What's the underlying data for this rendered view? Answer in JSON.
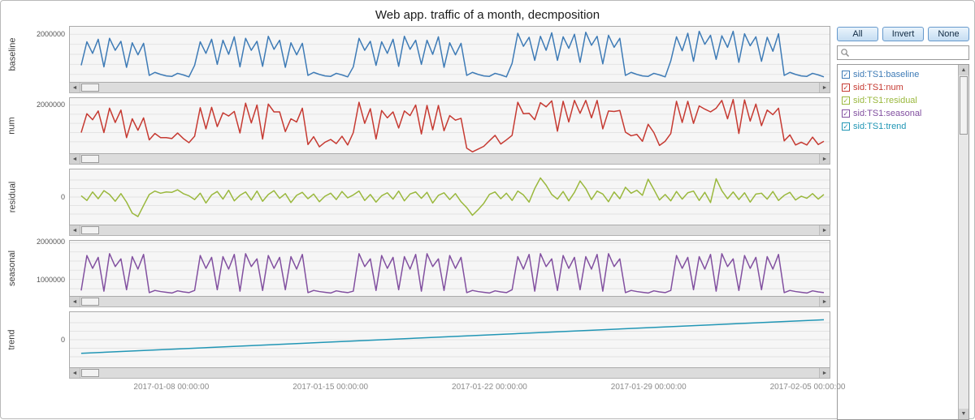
{
  "title": "Web app. traffic of a month, decmposition",
  "panel": {
    "buttons": [
      "All",
      "Invert",
      "None"
    ],
    "search": {
      "value": "",
      "placeholder": ""
    },
    "series": [
      {
        "label": "sid:TS1:baseline",
        "color": "#3e7bb6",
        "checked": true
      },
      {
        "label": "sid:TS1:num",
        "color": "#c63a32",
        "checked": true
      },
      {
        "label": "sid:TS1:residual",
        "color": "#9ab83d",
        "checked": true
      },
      {
        "label": "sid:TS1:seasonal",
        "color": "#8250a0",
        "checked": true
      },
      {
        "label": "sid:TS1:trend",
        "color": "#2196b5",
        "checked": true
      }
    ]
  },
  "chart_data": {
    "type": "line",
    "title": "Web app. traffic of a month, decmposition",
    "xlabel": "",
    "x_domain": [
      0,
      33.5
    ],
    "x_unit": "days from 2017-01-03 12:00:00",
    "xticks": [
      {
        "x": 4.5,
        "label": "2017-01-08 00:00:00"
      },
      {
        "x": 11.5,
        "label": "2017-01-15 00:00:00"
      },
      {
        "x": 18.5,
        "label": "2017-01-22 00:00:00"
      },
      {
        "x": 25.5,
        "label": "2017-01-29 00:00:00"
      },
      {
        "x": 32.5,
        "label": "2017-02-05 00:00:00"
      }
    ],
    "charts": [
      {
        "name": "baseline",
        "color": "#3e7bb6",
        "ylim": [
          1050000,
          2150000
        ],
        "yticks": [
          {
            "v": 2000000,
            "label": "2000000"
          }
        ],
        "gridlines": [
          1200000,
          1400000,
          1600000,
          1800000,
          2000000
        ],
        "x_start": 0.5,
        "samples_per_day": 4,
        "values": [
          1380000,
          1850000,
          1620000,
          1900000,
          1350000,
          1920000,
          1680000,
          1860000,
          1340000,
          1830000,
          1590000,
          1820000,
          1180000,
          1240000,
          1200000,
          1170000,
          1160000,
          1220000,
          1190000,
          1150000,
          1380000,
          1850000,
          1620000,
          1900000,
          1400000,
          1880000,
          1600000,
          1950000,
          1350000,
          1920000,
          1680000,
          1860000,
          1360000,
          1960000,
          1700000,
          1880000,
          1340000,
          1830000,
          1590000,
          1820000,
          1180000,
          1240000,
          1200000,
          1170000,
          1160000,
          1220000,
          1190000,
          1150000,
          1350000,
          1920000,
          1680000,
          1860000,
          1380000,
          1850000,
          1620000,
          1900000,
          1360000,
          1960000,
          1700000,
          1880000,
          1400000,
          1880000,
          1600000,
          1950000,
          1340000,
          1830000,
          1590000,
          1820000,
          1180000,
          1240000,
          1200000,
          1170000,
          1160000,
          1220000,
          1190000,
          1150000,
          1420000,
          2020000,
          1760000,
          1940000,
          1480000,
          1960000,
          1680000,
          2030000,
          1480000,
          1950000,
          1720000,
          2000000,
          1440000,
          2040000,
          1780000,
          1960000,
          1410000,
          1980000,
          1740000,
          1920000,
          1180000,
          1240000,
          1200000,
          1170000,
          1160000,
          1220000,
          1190000,
          1150000,
          1470000,
          1950000,
          1670000,
          2020000,
          1460000,
          2060000,
          1800000,
          1980000,
          1500000,
          1970000,
          1740000,
          2060000,
          1440000,
          2010000,
          1770000,
          1950000,
          1460000,
          1940000,
          1660000,
          2010000,
          1180000,
          1240000,
          1200000,
          1170000,
          1160000,
          1220000,
          1190000,
          1150000
        ]
      },
      {
        "name": "num",
        "color": "#c63a32",
        "ylim": [
          950000,
          2150000
        ],
        "yticks": [
          {
            "v": 2000000,
            "label": "2000000"
          }
        ],
        "gridlines": [
          1200000,
          1400000,
          1600000,
          1800000,
          2000000
        ],
        "x_start": 0.5,
        "samples_per_day": 4,
        "values": [
          1400000,
          1810000,
          1680000,
          1870000,
          1400000,
          1930000,
          1620000,
          1890000,
          1290000,
          1700000,
          1450000,
          1720000,
          1240000,
          1380000,
          1290000,
          1290000,
          1270000,
          1390000,
          1270000,
          1180000,
          1320000,
          1940000,
          1480000,
          1950000,
          1530000,
          1830000,
          1760000,
          1860000,
          1390000,
          2040000,
          1610000,
          2000000,
          1260000,
          2020000,
          1850000,
          1850000,
          1420000,
          1700000,
          1630000,
          1930000,
          1140000,
          1310000,
          1090000,
          1190000,
          1250000,
          1160000,
          1320000,
          1130000,
          1400000,
          2060000,
          1600000,
          1920000,
          1260000,
          1880000,
          1720000,
          1850000,
          1500000,
          1870000,
          1770000,
          2000000,
          1370000,
          1990000,
          1460000,
          1990000,
          1440000,
          1770000,
          1670000,
          1710000,
          1060000,
          980000,
          1040000,
          1100000,
          1220000,
          1340000,
          1150000,
          1240000,
          1340000,
          2060000,
          1810000,
          1820000,
          1680000,
          2050000,
          1960000,
          2090000,
          1430000,
          2080000,
          1630000,
          2100000,
          1820000,
          2100000,
          1720000,
          2100000,
          1480000,
          1870000,
          1860000,
          1880000,
          1410000,
          1330000,
          1360000,
          1210000,
          1580000,
          1400000,
          1120000,
          1210000,
          1380000,
          2080000,
          1620000,
          2080000,
          1600000,
          1980000,
          1910000,
          1850000,
          1930000,
          2100000,
          1700000,
          2120000,
          1380000,
          2110000,
          1650000,
          2020000,
          1550000,
          1890000,
          1790000,
          1930000,
          1220000,
          1350000,
          1130000,
          1190000,
          1130000,
          1300000,
          1140000,
          1210000
        ]
      },
      {
        "name": "residual",
        "color": "#9ab83d",
        "ylim": [
          -650000,
          650000
        ],
        "yticks": [
          {
            "v": 0,
            "label": "0"
          }
        ],
        "gridlines": [
          -400000,
          -200000,
          0,
          200000,
          400000
        ],
        "x_start": 0.5,
        "samples_per_day": 4,
        "values": [
          30000,
          -80000,
          120000,
          -40000,
          150000,
          60000,
          -100000,
          80000,
          -120000,
          -380000,
          -460000,
          -200000,
          60000,
          140000,
          90000,
          120000,
          110000,
          170000,
          80000,
          30000,
          -60000,
          90000,
          -140000,
          50000,
          130000,
          -50000,
          160000,
          -90000,
          40000,
          120000,
          -70000,
          140000,
          -100000,
          60000,
          150000,
          -30000,
          80000,
          -130000,
          40000,
          110000,
          -40000,
          70000,
          -110000,
          20000,
          90000,
          -60000,
          130000,
          -20000,
          50000,
          140000,
          -80000,
          60000,
          -120000,
          30000,
          100000,
          -50000,
          140000,
          -90000,
          70000,
          120000,
          -30000,
          110000,
          -140000,
          40000,
          100000,
          -60000,
          80000,
          -110000,
          -250000,
          -430000,
          -300000,
          -150000,
          60000,
          120000,
          -40000,
          90000,
          -80000,
          140000,
          50000,
          -120000,
          200000,
          450000,
          280000,
          60000,
          -50000,
          130000,
          -90000,
          110000,
          380000,
          200000,
          -60000,
          140000,
          70000,
          -110000,
          120000,
          -40000,
          230000,
          90000,
          160000,
          40000,
          420000,
          180000,
          -70000,
          60000,
          -90000,
          130000,
          -50000,
          100000,
          140000,
          -80000,
          110000,
          -130000,
          430000,
          150000,
          -40000,
          120000,
          -60000,
          100000,
          -120000,
          70000,
          90000,
          -50000,
          130000,
          -80000,
          40000,
          110000,
          -70000,
          20000,
          -30000,
          80000,
          -50000,
          60000
        ]
      },
      {
        "name": "seasonal",
        "color": "#8250a0",
        "ylim": [
          550000,
          2050000
        ],
        "yticks": [
          {
            "v": 2000000,
            "label": "2000000"
          },
          {
            "v": 1000000,
            "label": "1000000"
          }
        ],
        "gridlines": [
          750000,
          1000000,
          1250000,
          1500000,
          1750000,
          2000000
        ],
        "x_start": 0.5,
        "samples_per_day": 4,
        "values": [
          700000,
          1650000,
          1300000,
          1600000,
          680000,
          1700000,
          1350000,
          1560000,
          720000,
          1620000,
          1280000,
          1680000,
          640000,
          700000,
          670000,
          650000,
          630000,
          690000,
          660000,
          640000,
          700000,
          1650000,
          1300000,
          1600000,
          720000,
          1620000,
          1280000,
          1680000,
          680000,
          1700000,
          1350000,
          1560000,
          700000,
          1650000,
          1300000,
          1600000,
          720000,
          1620000,
          1280000,
          1680000,
          640000,
          700000,
          670000,
          650000,
          630000,
          690000,
          660000,
          640000,
          680000,
          1700000,
          1350000,
          1560000,
          700000,
          1650000,
          1300000,
          1600000,
          720000,
          1620000,
          1280000,
          1680000,
          680000,
          1700000,
          1350000,
          1560000,
          700000,
          1650000,
          1300000,
          1600000,
          640000,
          700000,
          670000,
          650000,
          630000,
          690000,
          660000,
          640000,
          720000,
          1620000,
          1280000,
          1680000,
          680000,
          1700000,
          1350000,
          1560000,
          700000,
          1650000,
          1300000,
          1600000,
          720000,
          1620000,
          1280000,
          1680000,
          680000,
          1700000,
          1350000,
          1560000,
          640000,
          700000,
          670000,
          650000,
          630000,
          690000,
          660000,
          640000,
          700000,
          1650000,
          1300000,
          1600000,
          720000,
          1620000,
          1280000,
          1680000,
          680000,
          1700000,
          1350000,
          1560000,
          700000,
          1650000,
          1300000,
          1600000,
          720000,
          1620000,
          1280000,
          1680000,
          640000,
          700000,
          670000,
          650000,
          630000,
          690000,
          660000,
          640000
        ]
      },
      {
        "name": "trend",
        "color": "#2196b5",
        "ylim": [
          -650000,
          650000
        ],
        "yticks": [
          {
            "v": 0,
            "label": "0"
          }
        ],
        "gridlines": [
          -400000,
          -200000,
          0,
          200000,
          400000
        ],
        "points": [
          [
            0.5,
            -320000
          ],
          [
            33.25,
            470000
          ]
        ]
      }
    ]
  }
}
